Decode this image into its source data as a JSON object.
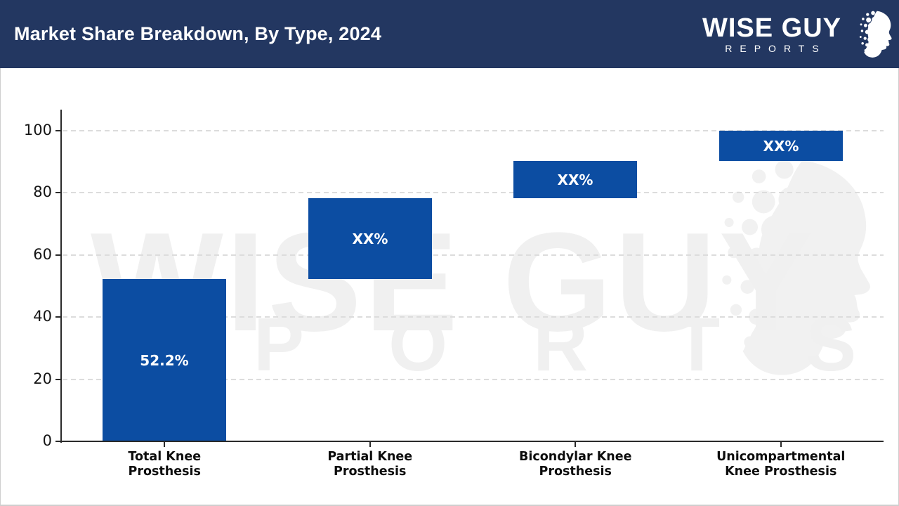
{
  "header": {
    "title": "Market Share Breakdown, By Type, 2024"
  },
  "logo": {
    "line1": "WISE GUY",
    "line2": "REPORTS"
  },
  "watermark": {
    "line1": "WISE GUY",
    "line2": "P O R T S"
  },
  "chart_data": {
    "type": "bar",
    "subtype": "waterfall",
    "title": "Market Share Breakdown, By Type, 2024",
    "categories": [
      "Total Knee\nProsthesis",
      "Partial Knee\nProsthesis",
      "Bicondylar Knee\nProsthesis",
      "Unicompartmental\nKnee Prosthesis"
    ],
    "segments": [
      {
        "category": "Total Knee Prosthesis",
        "start": 0,
        "end": 52.2,
        "label": "52.2%"
      },
      {
        "category": "Partial Knee Prosthesis",
        "start": 52.2,
        "end": 78.2,
        "label": "XX%"
      },
      {
        "category": "Bicondylar Knee Prosthesis",
        "start": 78.2,
        "end": 90.2,
        "label": "XX%"
      },
      {
        "category": "Unicompartmental Knee Prosthesis",
        "start": 90.2,
        "end": 100,
        "label": "XX%"
      }
    ],
    "ylim": [
      0,
      100
    ],
    "yticks": [
      0,
      20,
      40,
      60,
      80,
      100
    ],
    "xlabel": "",
    "ylabel": "",
    "grid": "horizontal-dashed",
    "legend": "none",
    "colors": {
      "header_bg": "#233761",
      "bar": "#0C4DA2",
      "bar_label": "#ffffff",
      "gridline": "#dcdcdc",
      "axis": "#2a2a2a",
      "watermark": "#f0f0f0"
    }
  }
}
